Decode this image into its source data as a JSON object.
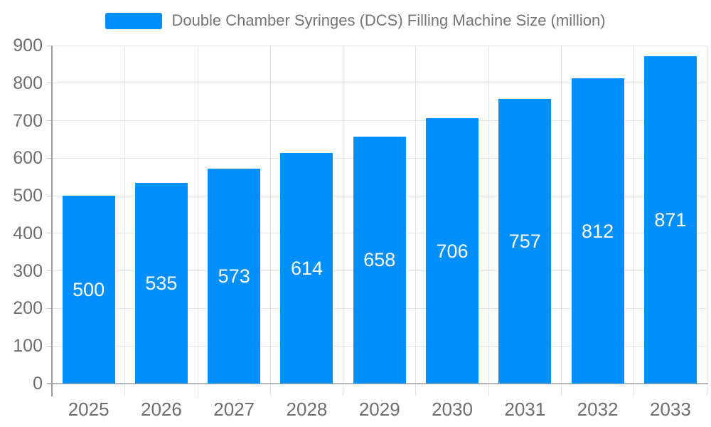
{
  "chart_data": {
    "type": "bar",
    "title": "Double Chamber Syringes (DCS) Filling Machine Size (million)",
    "categories": [
      "2025",
      "2026",
      "2027",
      "2028",
      "2029",
      "2030",
      "2031",
      "2032",
      "2033"
    ],
    "values": [
      500,
      535,
      573,
      614,
      658,
      706,
      757,
      812,
      871
    ],
    "data_labels": [
      "500",
      "535",
      "573",
      "614",
      "658",
      "706",
      "757",
      "812",
      "871"
    ],
    "xlabel": "",
    "ylabel": "",
    "ylim": [
      0,
      900
    ],
    "ytick_step": 100,
    "y_ticks": [
      0,
      100,
      200,
      300,
      400,
      500,
      600,
      700,
      800,
      900
    ],
    "grid": true,
    "legend_position": "top-center"
  },
  "colors": {
    "bar": "#008FFB",
    "value_label": "#ffffff",
    "title_text": "#757575",
    "axis_label_text": "#6e6e6e",
    "grid_line": "#e3e3e3",
    "axis_line": "#9c9c9c",
    "baseline": "#b6b6b6",
    "tick": "#c9c9c9"
  }
}
